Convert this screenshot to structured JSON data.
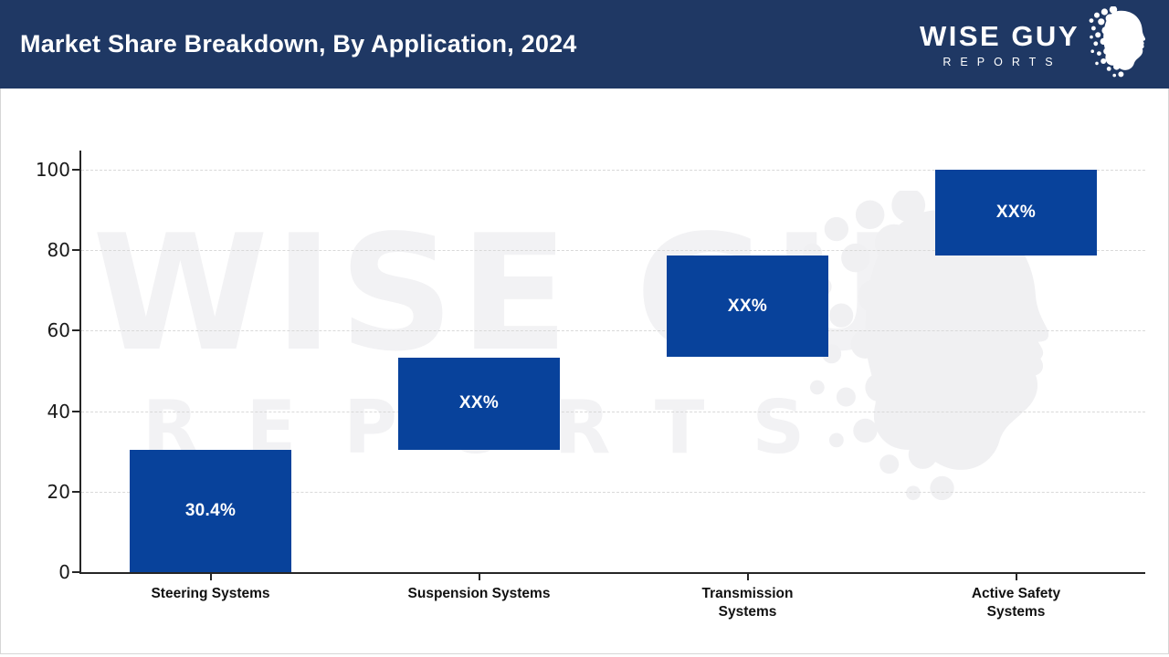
{
  "header": {
    "title": "Market Share Breakdown, By Application, 2024",
    "logo": {
      "wordmark": "WISE GUY",
      "sub": "REPORTS",
      "head_icon": "dotted-profile-head-icon"
    }
  },
  "watermark": {
    "wordmark": "WISE GUY",
    "sub": "REPORTS",
    "head_icon": "dotted-profile-head-icon"
  },
  "chart_data": {
    "type": "bar",
    "variant": "waterfall",
    "title": "Market Share Breakdown, By Application, 2024",
    "categories": [
      "Steering Systems",
      "Suspension Systems",
      "Transmission Systems",
      "Active Safety Systems"
    ],
    "category_lines": [
      [
        "Steering Systems"
      ],
      [
        "Suspension Systems"
      ],
      [
        "Transmission",
        "Systems"
      ],
      [
        "Active Safety",
        "Systems"
      ]
    ],
    "segments": [
      {
        "category": "Steering Systems",
        "start": 0,
        "end": 30.4,
        "label": "30.4%"
      },
      {
        "category": "Suspension Systems",
        "start": 30.4,
        "end": 53.4,
        "label": "XX%"
      },
      {
        "category": "Transmission Systems",
        "start": 53.4,
        "end": 78.6,
        "label": "XX%"
      },
      {
        "category": "Active Safety Systems",
        "start": 78.6,
        "end": 100,
        "label": "XX%"
      }
    ],
    "y_ticks": [
      0,
      20,
      40,
      60,
      80,
      100
    ],
    "ylim": [
      0,
      105
    ],
    "xlabel": "",
    "ylabel": "",
    "grid": "horizontal-dashed",
    "legend": "none",
    "bar_color": "#08429b",
    "bar_label_color": "#ffffff"
  },
  "colors": {
    "header_bg": "#1f3864",
    "header_text": "#ffffff",
    "bar": "#08429b",
    "axis": "#262626",
    "tick_text": "#1a1a1a",
    "grid": "#d9d9d9",
    "watermark": "#f2f2f4",
    "border": "#d6d6d6",
    "background": "#ffffff"
  }
}
